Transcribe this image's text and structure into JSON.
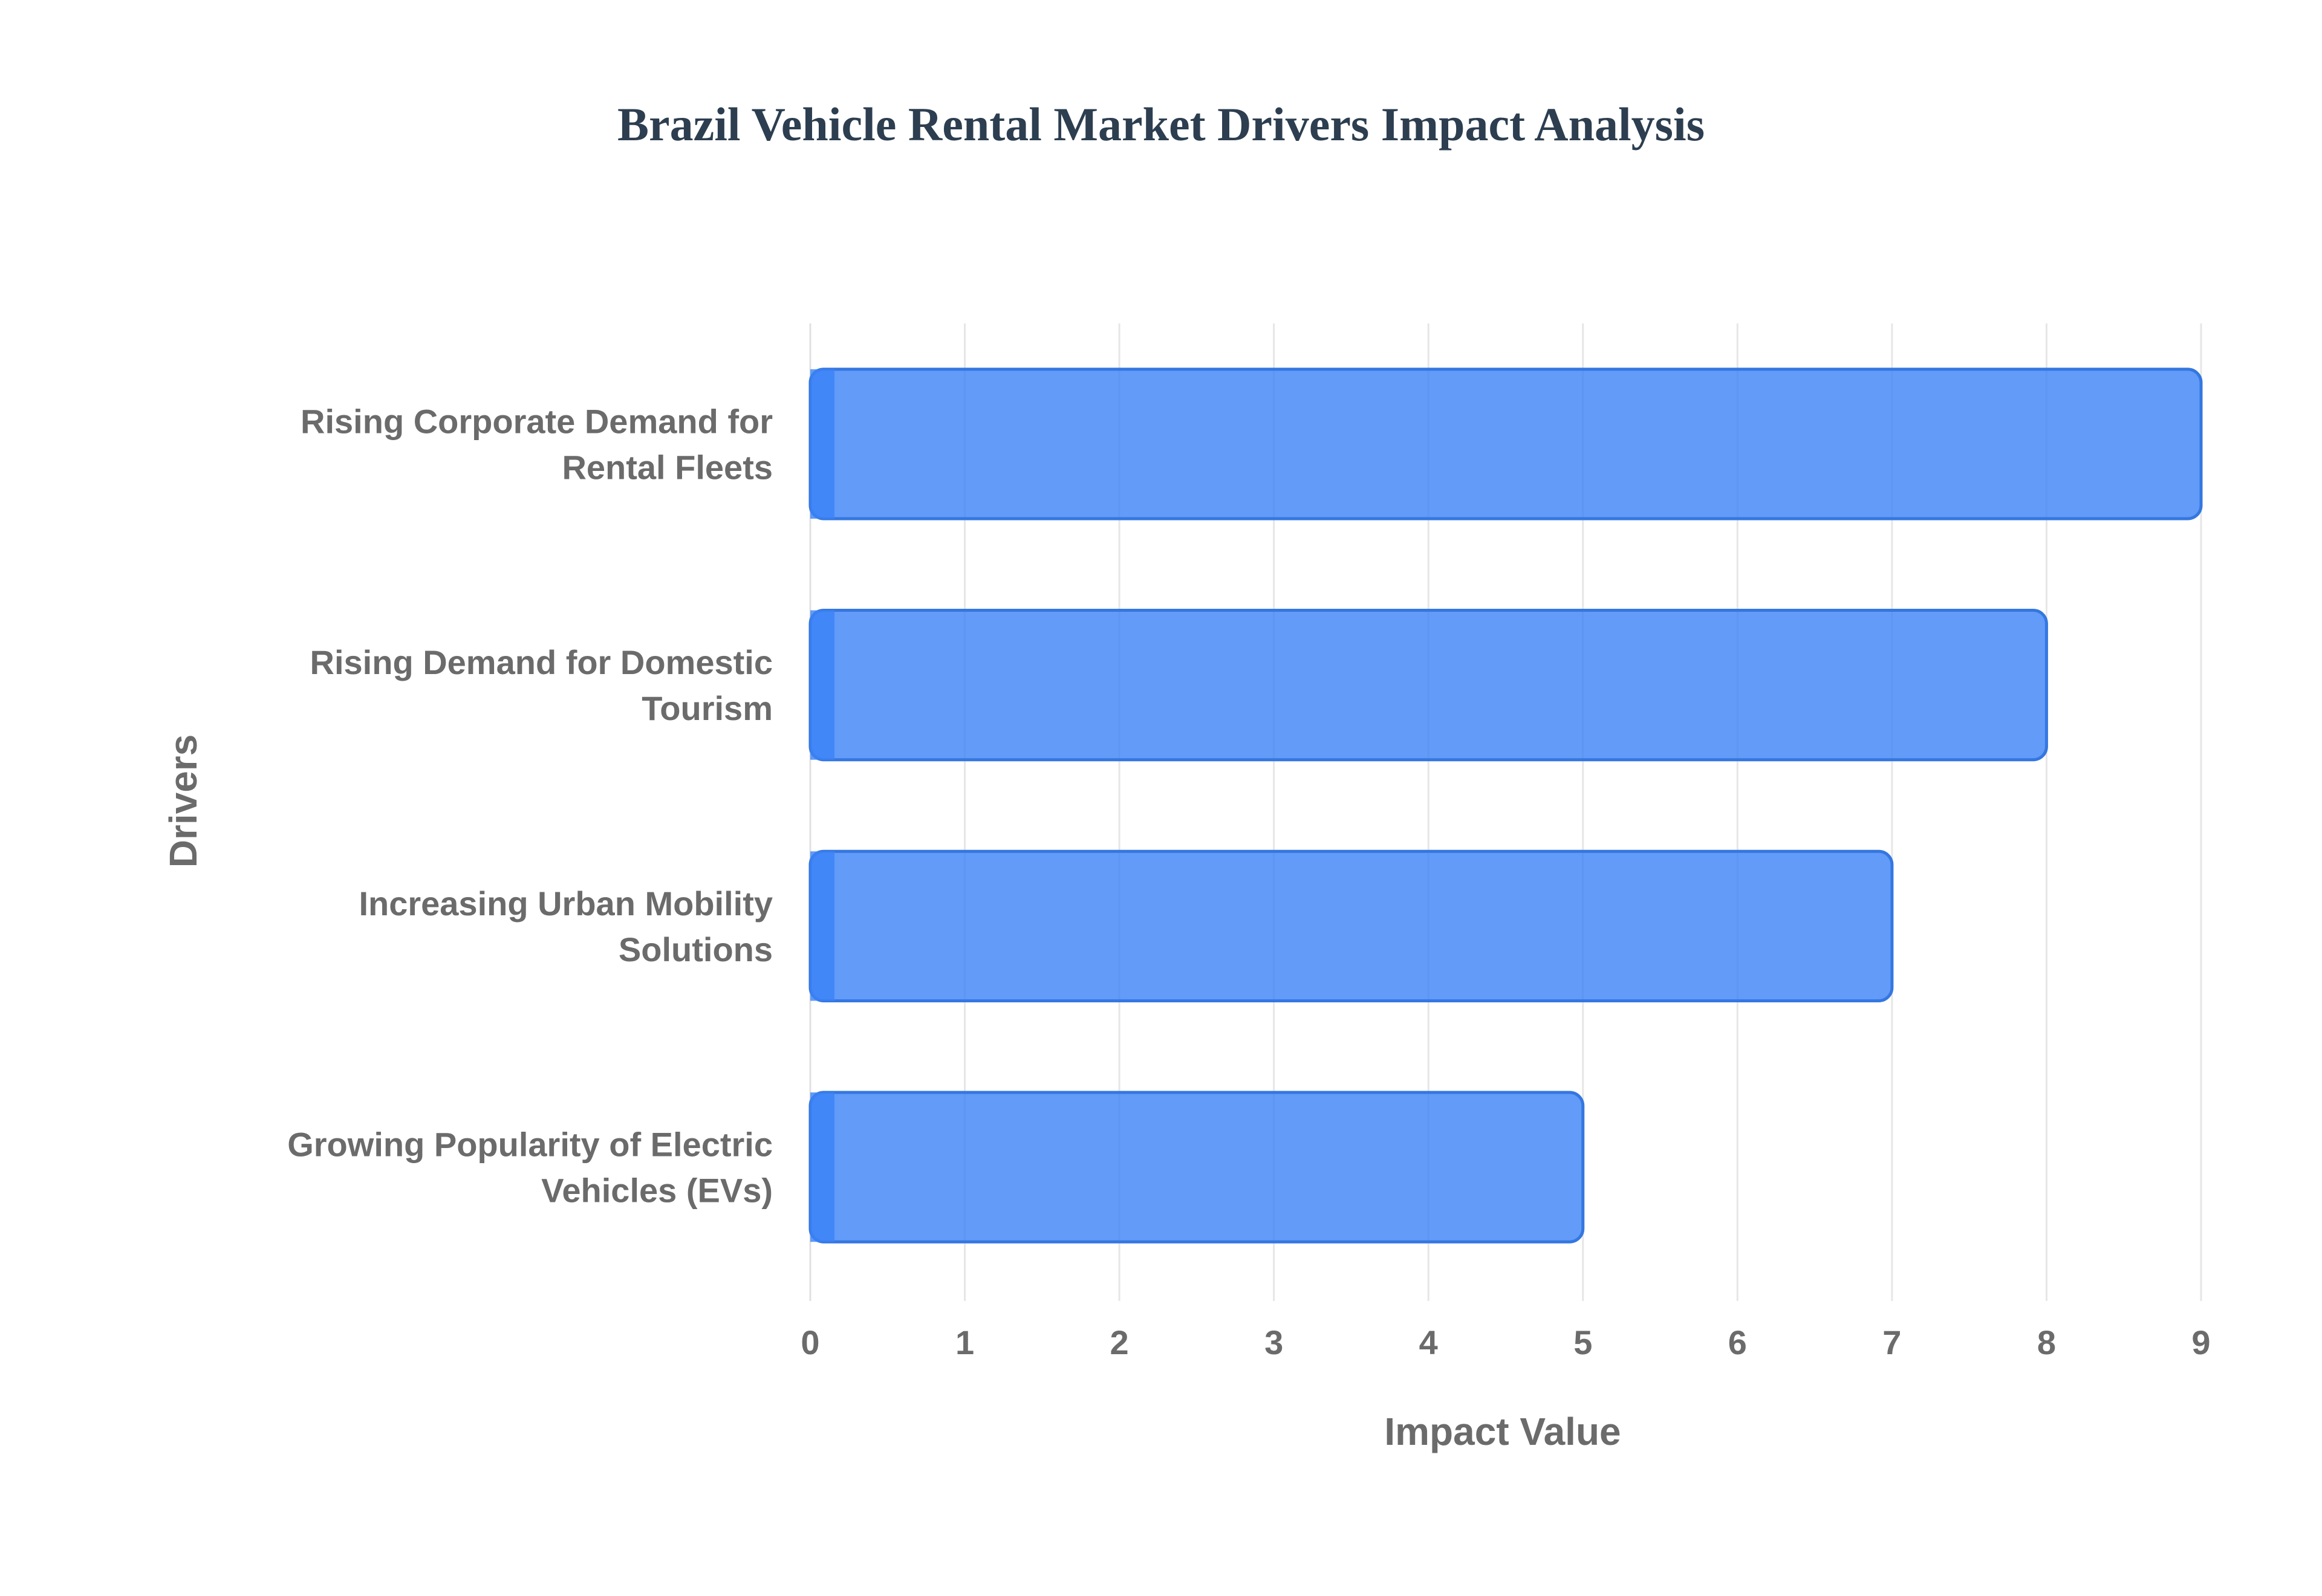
{
  "chart_data": {
    "type": "bar",
    "orientation": "horizontal",
    "title": "Brazil Vehicle Rental Market Drivers Impact Analysis",
    "xlabel": "Impact Value",
    "ylabel": "Drivers",
    "xlim": [
      0,
      9
    ],
    "xticks": [
      0,
      1,
      2,
      3,
      4,
      5,
      6,
      7,
      8,
      9
    ],
    "grid": true,
    "legend": "none",
    "categories": [
      [
        "Rising Corporate Demand for",
        "Rental Fleets"
      ],
      [
        "Rising Demand for Domestic",
        "Tourism"
      ],
      [
        "Increasing Urban Mobility",
        "Solutions"
      ],
      [
        "Growing Popularity of Electric",
        "Vehicles (EVs)"
      ]
    ],
    "values": [
      9,
      8,
      7,
      5
    ],
    "colors": {
      "bar_fill": "#3b82f6",
      "bar_stroke": "#3577e0",
      "title": "#2c3e50",
      "text": "#6b6b6b",
      "grid": "#e6e6e6"
    }
  }
}
